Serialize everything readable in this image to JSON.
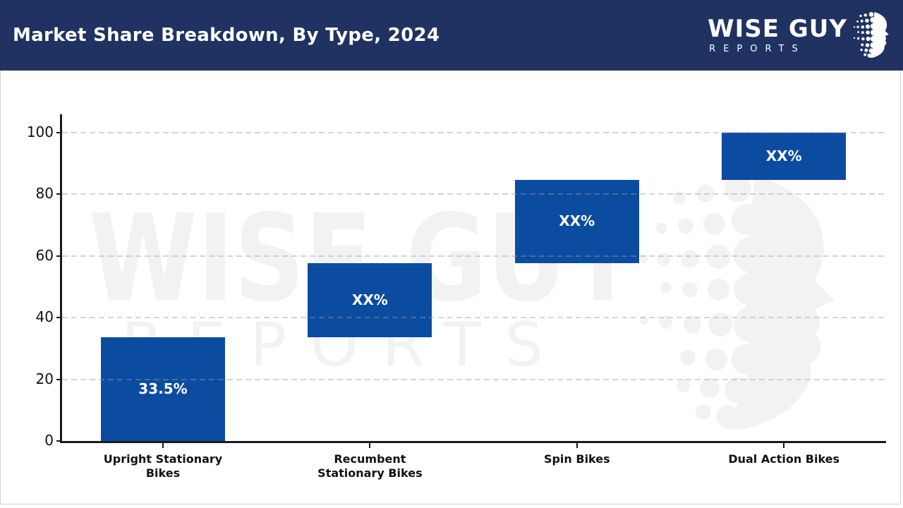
{
  "header": {
    "title": "Market Share Breakdown, By Type, 2024",
    "brand": {
      "wordmark": "WISE GUY",
      "tagline": "REPORTS"
    }
  },
  "watermark": {
    "line1": "WISE GUY",
    "line2": "REPORTS"
  },
  "chart_data": {
    "type": "bar",
    "variant": "floating-segment-waterfall",
    "title": "Market Share Breakdown, By Type, 2024",
    "categories": [
      "Upright Stationary\nBikes",
      "Recumbent\nStationary Bikes",
      "Spin Bikes",
      "Dual Action Bikes"
    ],
    "bars": [
      {
        "category": "Upright Stationary Bikes",
        "start": 0,
        "end": 33.5,
        "label": "33.5%"
      },
      {
        "category": "Recumbent Stationary Bikes",
        "start": 33.5,
        "end": 57.5,
        "label": "XX%"
      },
      {
        "category": "Spin Bikes",
        "start": 57.5,
        "end": 84.5,
        "label": "XX%"
      },
      {
        "category": "Dual Action Bikes",
        "start": 84.5,
        "end": 99.8,
        "label": "XX%"
      }
    ],
    "xlabel": "",
    "ylabel": "",
    "yticks": [
      0,
      20,
      40,
      60,
      80,
      100
    ],
    "ylim": [
      0,
      105.8
    ],
    "grid": "horizontal-dashed",
    "legend": null,
    "colors": {
      "bar": "#0C4CA0",
      "bar_label": "#FFFFFF",
      "axis": "#1A1A1A",
      "gridline": "#DEDEDE"
    }
  },
  "colors": {
    "header_bg": "#1F3262",
    "page_bg": "#FFFFFF",
    "border": "#D0D0D0",
    "watermark": "#F2F2F2"
  }
}
